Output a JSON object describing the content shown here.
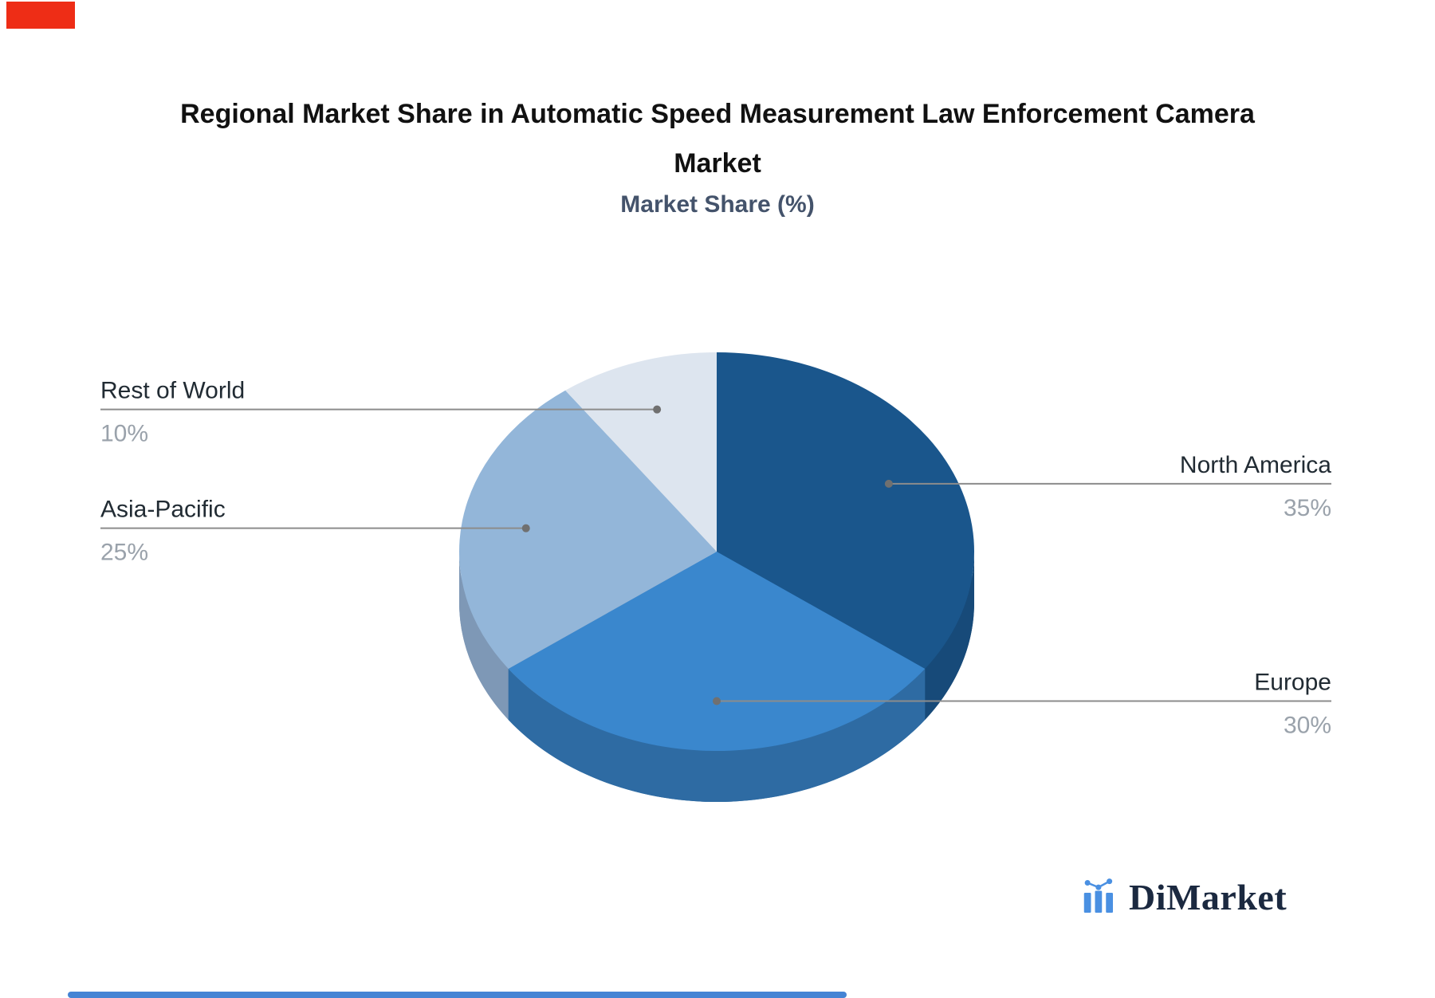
{
  "page": {
    "title_line1": "Regional Market Share in Automatic Speed Measurement Law Enforcement Camera",
    "title_line2": "Market",
    "subtitle": "Market Share (%)"
  },
  "branding": {
    "logo_text": "DiMarket",
    "logo_icon": "bar-line-chart-icon",
    "logo_text_color": "#1b2940",
    "logo_icon_color": "#4a90e2"
  },
  "decorations": {
    "top_left_red_block_color": "#ee2d16",
    "bottom_blue_bar_color": "#4584d4"
  },
  "chart_data": {
    "type": "pie",
    "effect": "3d",
    "title": "Regional Market Share in Automatic Speed Measurement Law Enforcement Camera Market",
    "subtitle": "Market Share (%)",
    "categories": [
      "North America",
      "Europe",
      "Asia-Pacific",
      "Rest of World"
    ],
    "values": [
      35,
      30,
      25,
      10
    ],
    "percent_labels": [
      "35%",
      "30%",
      "25%",
      "10%"
    ],
    "colors": [
      "#1a568c",
      "#3a87cd",
      "#93b6d9",
      "#dde5ef"
    ],
    "depth_colors": [
      "#174a79",
      "#2e6ba3",
      "#7e98b6",
      "#c5d1e0"
    ],
    "start_angle": "top",
    "direction": "clockwise",
    "legend": "none",
    "label_style": {
      "name_color": "#212b33",
      "percent_color": "#9aa2ab",
      "line_color": "#8c8c8c",
      "dot_color": "#707070"
    }
  }
}
